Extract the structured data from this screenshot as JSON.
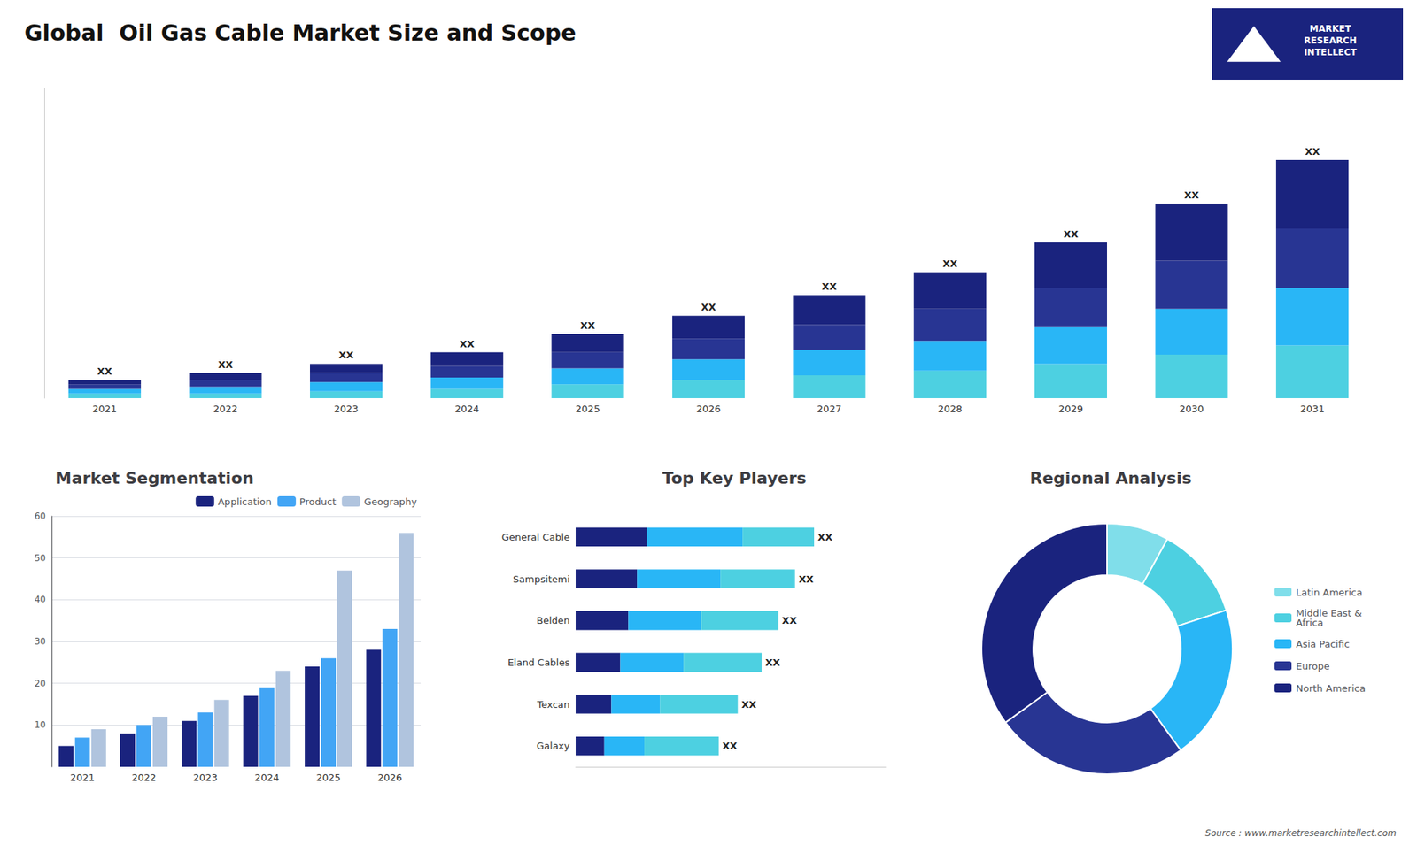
{
  "title": "Global  Oil Gas Cable Market Size and Scope",
  "annotations": [
    "Source : www.marketresearchintellect.com",
    "MARKET\nRESEARCH\nINTELLECT"
  ],
  "chart_data": [
    {
      "type": "bar",
      "stacked": true,
      "categories": [
        "2021",
        "2022",
        "2023",
        "2024",
        "2025",
        "2026",
        "2027",
        "2028",
        "2029",
        "2030",
        "2031"
      ],
      "series": [
        {
          "color": "#4dd0e1",
          "values": [
            2,
            2,
            3,
            4,
            6,
            8,
            10,
            12,
            15,
            19,
            23
          ]
        },
        {
          "color": "#29b6f6",
          "values": [
            2,
            3,
            4,
            5,
            7,
            9,
            11,
            13,
            16,
            20,
            25
          ]
        },
        {
          "color": "#283593",
          "values": [
            2,
            3,
            4,
            5,
            7,
            9,
            11,
            14,
            17,
            21,
            26
          ]
        },
        {
          "color": "#1a237e",
          "values": [
            2,
            3,
            4,
            6,
            8,
            10,
            13,
            16,
            20,
            25,
            30
          ],
          "value_labels": [
            "XX",
            "XX",
            "XX",
            "XX",
            "XX",
            "XX",
            "XX",
            "XX",
            "XX",
            "XX",
            "XX"
          ]
        }
      ],
      "ylim": [
        0,
        135.2
      ],
      "tick_labels": "x",
      "data_labels": true,
      "grid": false
    },
    {
      "type": "bar",
      "title": "Market Segmentation",
      "categories": [
        "2021",
        "2022",
        "2023",
        "2024",
        "2025",
        "2026"
      ],
      "series": [
        {
          "name": "Application",
          "color": "#1a237e",
          "values": [
            5,
            8,
            11,
            17,
            24,
            28
          ]
        },
        {
          "name": "Product",
          "color": "#42a5f5",
          "values": [
            7,
            10,
            13,
            19,
            26,
            33
          ]
        },
        {
          "name": "Geography",
          "color": "#b0c4de",
          "values": [
            9,
            12,
            16,
            23,
            47,
            56
          ]
        }
      ],
      "ylim": [
        0,
        60
      ],
      "yticks": [
        10,
        20,
        30,
        40,
        50,
        60
      ],
      "grid": true,
      "legend": "upper right"
    },
    {
      "type": "bar",
      "orientation": "horizontal",
      "stacked": true,
      "title": "Top Key Players",
      "categories": [
        "General Cable",
        "Sampsitemi",
        "Belden",
        "Eland Cables",
        "Texcan",
        "Galaxy"
      ],
      "series": [
        {
          "color": "#1a237e",
          "values": [
            30,
            25.76,
            22.1,
            18.72,
            14.96,
            12
          ]
        },
        {
          "color": "#29b6f6",
          "values": [
            40,
            34.96,
            30.6,
            26.52,
            20.4,
            16.8
          ]
        },
        {
          "color": "#4dd0e1",
          "values": [
            30,
            31.28,
            32.3,
            32.76,
            32.64,
            31.2
          ],
          "value_labels": [
            "XX",
            "XX",
            "XX",
            "XX",
            "XX",
            "XX"
          ]
        }
      ],
      "xlim": [
        0,
        130
      ],
      "tick_labels": "y",
      "data_labels": true,
      "grid": false
    },
    {
      "type": "pie",
      "title": "Regional Analysis",
      "categories": [
        "Latin America",
        "Middle East &\nAfrica",
        "Asia Pacific",
        "Europe",
        "North America"
      ],
      "values": [
        8,
        12,
        20,
        25,
        35
      ],
      "colors": [
        "#80deea",
        "#4dd0e1",
        "#29b6f6",
        "#283593",
        "#1a237e"
      ],
      "legend": "right"
    }
  ]
}
